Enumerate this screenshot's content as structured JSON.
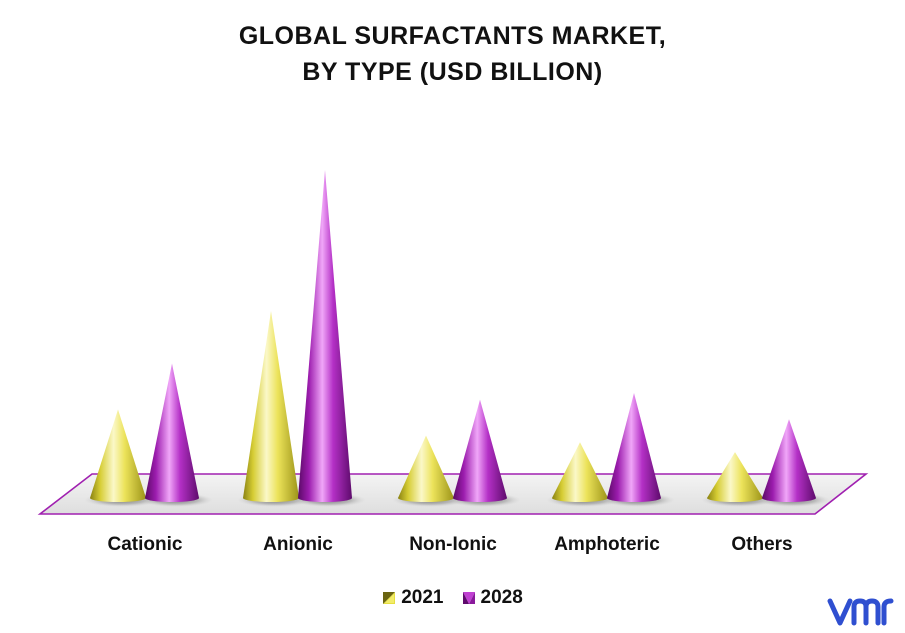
{
  "chart_data": {
    "type": "bar",
    "title_lines": [
      "GLOBAL SURFACTANTS MARKET,",
      "BY TYPE (USD BILLION)"
    ],
    "categories": [
      "Cationic",
      "Anionic",
      "Non-Ionic",
      "Amphoteric",
      "Others"
    ],
    "series": [
      {
        "name": "2021",
        "values": [
          2.7,
          5.7,
          1.9,
          1.7,
          1.4
        ]
      },
      {
        "name": "2028",
        "values": [
          4.1,
          10.0,
          3.0,
          3.2,
          2.4
        ]
      }
    ],
    "xlabel": "",
    "ylabel": "",
    "ylim": [
      0,
      10
    ],
    "grid": false,
    "legend_position": "bottom",
    "shape": "3d cone",
    "colors": {
      "2021": "#e8e04a",
      "2028": "#a51fb4",
      "floor_outline": "#a020b0"
    }
  },
  "logo": {
    "name": "vmr-logo-icon"
  }
}
